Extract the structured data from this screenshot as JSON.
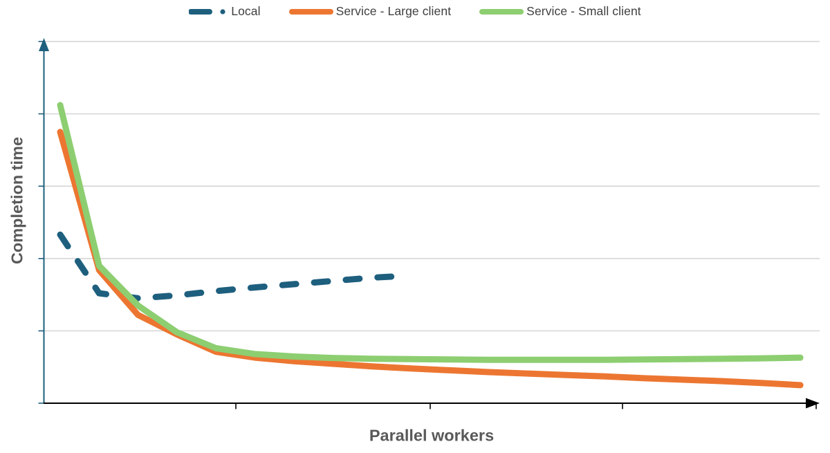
{
  "axes": {
    "y_label": "Completion time",
    "x_label": "Parallel workers",
    "x_tick_labels_visible": false,
    "y_tick_labels_visible": false
  },
  "legend": {
    "items": [
      {
        "label": "Local",
        "color": "#1E5F7E",
        "line_style": "dashed-with-dot"
      },
      {
        "label": "Service - Large client",
        "color": "#EC7631",
        "line_style": "solid"
      },
      {
        "label": "Service - Small client",
        "color": "#8DCE71",
        "line_style": "solid"
      }
    ]
  },
  "colors": {
    "local": "#1E5F7E",
    "large_client": "#EC7631",
    "small_client": "#8DCE71",
    "gridline": "#DADADA",
    "axis_text": "#595959",
    "legend_text": "#3F3F3F",
    "x_axis": "#000000",
    "y_axis": "#1E5F7E"
  },
  "chart_data": {
    "type": "line",
    "title": "",
    "xlabel": "Parallel workers",
    "ylabel": "Completion time",
    "axis_note": "No numeric tick labels shown; y values are relative units where 1 = one horizontal gridline spacing above the x-axis; x values estimated as worker counts",
    "grid": "horizontal-only",
    "legend_position": "top-center",
    "xlim": [
      0,
      20.5
    ],
    "ylim": [
      0,
      5
    ],
    "series": [
      {
        "name": "Local",
        "color": "#1E5F7E",
        "line_style": "dashed",
        "x": [
          1,
          2,
          3,
          4,
          5,
          6,
          7,
          8,
          9,
          9.5
        ],
        "y": [
          2.33,
          1.52,
          1.45,
          1.49,
          1.55,
          1.6,
          1.645,
          1.69,
          1.735,
          1.75
        ]
      },
      {
        "name": "Service - Large client",
        "color": "#EC7631",
        "line_style": "solid",
        "x": [
          1,
          2,
          3,
          4,
          5,
          6,
          7,
          8,
          9,
          10,
          11,
          12,
          13,
          14,
          15,
          16,
          17,
          18,
          19,
          20
        ],
        "y": [
          3.75,
          1.84,
          1.22,
          0.95,
          0.71,
          0.63,
          0.58,
          0.545,
          0.51,
          0.48,
          0.455,
          0.43,
          0.41,
          0.39,
          0.37,
          0.345,
          0.325,
          0.305,
          0.28,
          0.25
        ]
      },
      {
        "name": "Service - Small client",
        "color": "#8DCE71",
        "line_style": "solid",
        "x": [
          1,
          2,
          3,
          4,
          5,
          6,
          7,
          8,
          9,
          10,
          11,
          12,
          13,
          14,
          15,
          16,
          17,
          18,
          19,
          20
        ],
        "y": [
          4.12,
          1.9,
          1.35,
          0.98,
          0.76,
          0.68,
          0.645,
          0.625,
          0.615,
          0.61,
          0.605,
          0.6,
          0.6,
          0.6,
          0.6,
          0.605,
          0.61,
          0.615,
          0.62,
          0.63
        ]
      }
    ]
  }
}
